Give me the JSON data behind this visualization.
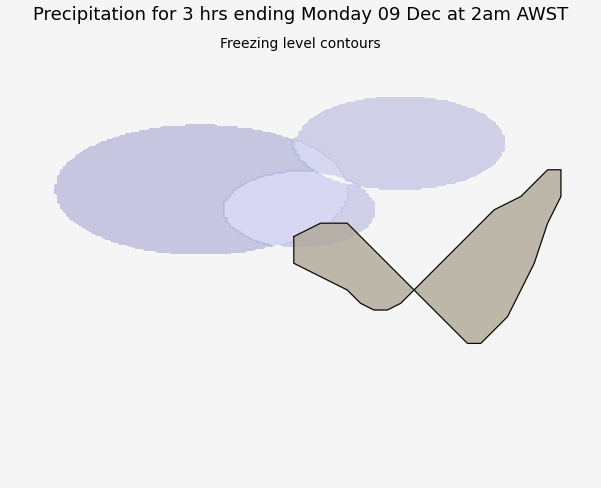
{
  "title": "Precipitation for 3 hrs ending Monday 09 Dec at 2am AWST",
  "subtitle": "Freezing level contours",
  "title_fontsize": 13,
  "subtitle_fontsize": 10,
  "bg_color_top": "#f0f0f0",
  "ocean_color": "#c8d8f0",
  "land_color": "#b0a898",
  "border_color": "#000000",
  "contour_color": "#cc0000",
  "contour_label_color": "#ffffff",
  "contour_label_bg": "#ffffff",
  "precip_colors": [
    "#9999cc",
    "#aaaadd",
    "#bbbbee"
  ],
  "map_extent": [
    70,
    160,
    -55,
    0
  ],
  "contour_levels": [
    3000,
    3500,
    4000,
    4500,
    5000
  ],
  "state_border_color": "#000000",
  "title_bg": "#f5f5f5"
}
